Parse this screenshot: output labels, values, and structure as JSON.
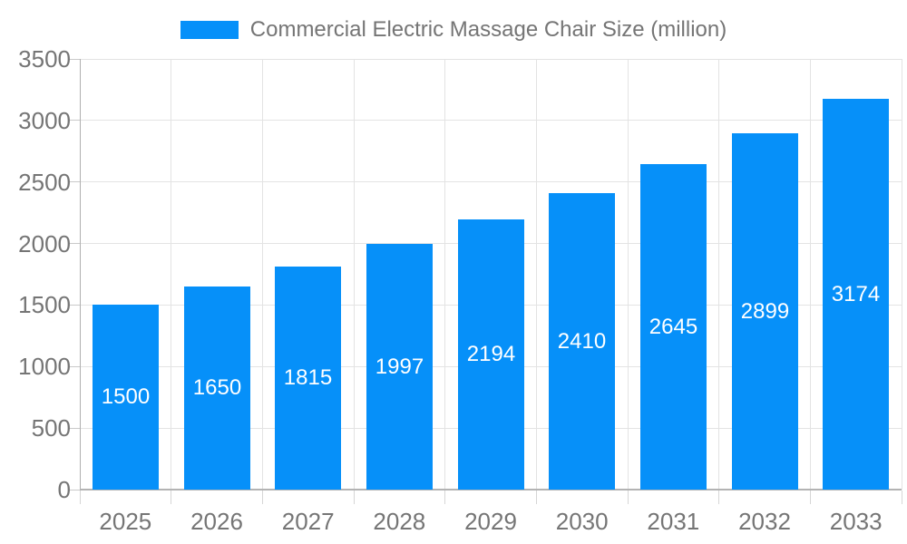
{
  "legend": {
    "label": "Commercial Electric Massage Chair Size (million)"
  },
  "colors": {
    "bar": "#0690f9",
    "grid": "#e3e3e3",
    "axis": "#b3b3b3",
    "tick": "#d6d6d6",
    "text": "#757575",
    "value_label": "#ffffff"
  },
  "chart_data": {
    "type": "bar",
    "title": "Commercial Electric Massage Chair Size (million)",
    "categories": [
      "2025",
      "2026",
      "2027",
      "2028",
      "2029",
      "2030",
      "2031",
      "2032",
      "2033"
    ],
    "values": [
      1500,
      1650,
      1815,
      1997,
      2194,
      2410,
      2645,
      2899,
      3174
    ],
    "xlabel": "",
    "ylabel": "",
    "ylim": [
      0,
      3500
    ],
    "yticks": [
      0,
      500,
      1000,
      1500,
      2000,
      2500,
      3000,
      3500
    ],
    "grid": true,
    "legend_position": "top",
    "value_labels": "inside-center"
  }
}
